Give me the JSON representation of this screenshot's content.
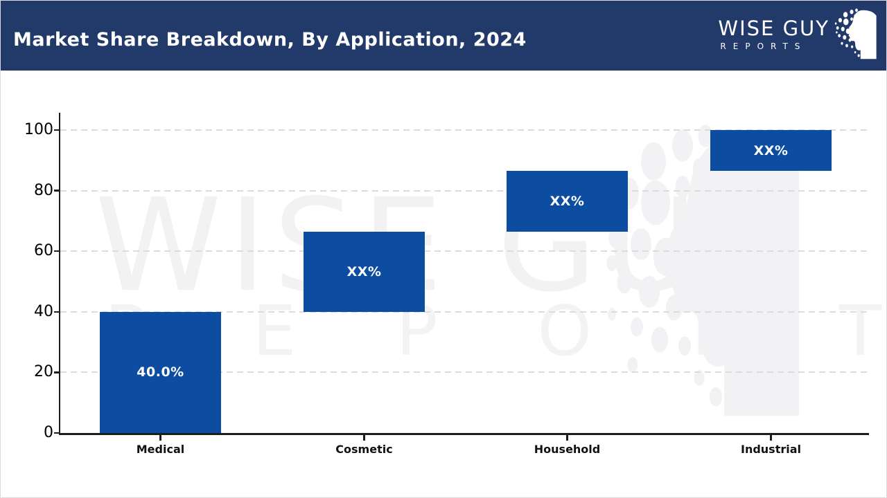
{
  "header": {
    "title": "Market Share Breakdown, By Application, 2024",
    "logo": {
      "line1": "WISE GUY",
      "line2": "REPORTS"
    }
  },
  "watermark": {
    "line1": "WISE GUY",
    "line2": "R E P O R T S"
  },
  "chart_data": {
    "type": "bar",
    "subtype": "waterfall",
    "title": "Market Share Breakdown, By Application, 2024",
    "categories": [
      "Medical",
      "Cosmetic",
      "Household",
      "Industrial"
    ],
    "segments": [
      {
        "category": "Medical",
        "start": 0,
        "end": 40,
        "label": "40.0%"
      },
      {
        "category": "Cosmetic",
        "start": 40,
        "end": 66.5,
        "label": "XX%"
      },
      {
        "category": "Household",
        "start": 66.5,
        "end": 86.5,
        "label": "XX%"
      },
      {
        "category": "Industrial",
        "start": 86.5,
        "end": 100,
        "label": "XX%"
      }
    ],
    "yticks": [
      0,
      20,
      40,
      60,
      80,
      100
    ],
    "ylim": [
      0,
      106
    ],
    "xlabel": "",
    "ylabel": "",
    "grid": "horizontal-dashed",
    "legend": false,
    "bar_color": "#0c4da2",
    "bar_label_color": "#ffffff",
    "header_bg_color": "#223a6a",
    "grid_color": "#dcdcdc",
    "axis_color": "#1c1c1c",
    "watermark_color": "#f2f2f3"
  }
}
